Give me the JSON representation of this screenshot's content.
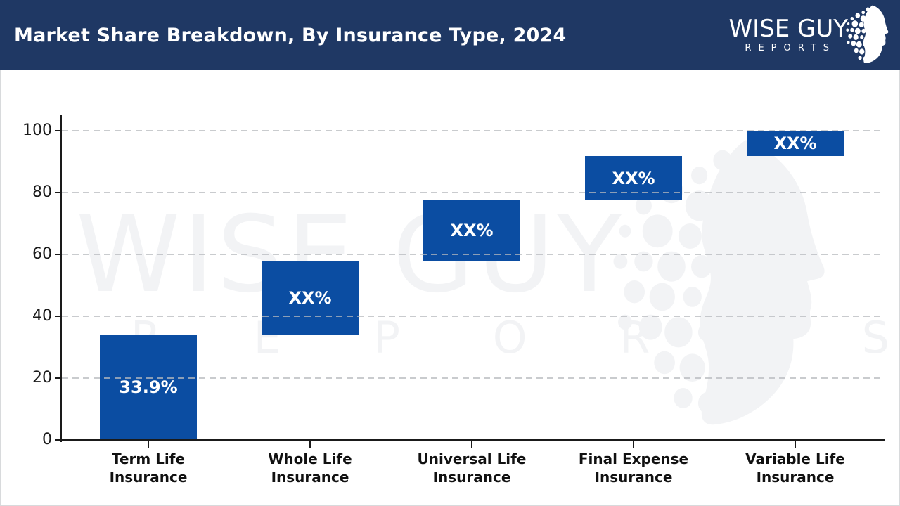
{
  "header": {
    "title": "Market Share Breakdown, By Insurance Type, 2024",
    "logo": {
      "line1": "WISE GUY",
      "line2": "REPORTS"
    }
  },
  "watermark": {
    "line1": "WISE GUY",
    "line2": "R E P O R T S"
  },
  "colors": {
    "header_bg": "#1f3864",
    "title_text": "#ffffff",
    "bar": "#0b4da2",
    "bar_label": "#ffffff",
    "axis": "#1a1a1a",
    "gridline": "#c9cccf",
    "watermark": "#f2f3f5"
  },
  "chart_data": {
    "type": "bar",
    "variant": "waterfall",
    "title": "Market Share Breakdown, By Insurance Type, 2024",
    "xlabel": "",
    "ylabel": "",
    "ylim": [
      0,
      105
    ],
    "yticks": [
      0,
      20,
      40,
      60,
      80,
      100
    ],
    "grid": "horizontal-dashed",
    "legend": "none",
    "bar_color": "#0b4da2",
    "categories": [
      "Term Life\nInsurance",
      "Whole Life\nInsurance",
      "Universal Life\nInsurance",
      "Final Expense\nInsurance",
      "Variable Life\nInsurance"
    ],
    "segments": [
      {
        "category": "Term Life Insurance",
        "start": 0,
        "end": 33.9,
        "value": 33.9,
        "label": "33.9%"
      },
      {
        "category": "Whole Life Insurance",
        "start": 33.9,
        "end": 58.0,
        "value": 24.1,
        "label": "XX%"
      },
      {
        "category": "Universal Life Insurance",
        "start": 58.0,
        "end": 77.4,
        "value": 19.4,
        "label": "XX%"
      },
      {
        "category": "Final Expense Insurance",
        "start": 77.4,
        "end": 91.9,
        "value": 14.5,
        "label": "XX%"
      },
      {
        "category": "Variable Life Insurance",
        "start": 91.9,
        "end": 99.8,
        "value": 7.9,
        "label": "XX%"
      }
    ]
  }
}
